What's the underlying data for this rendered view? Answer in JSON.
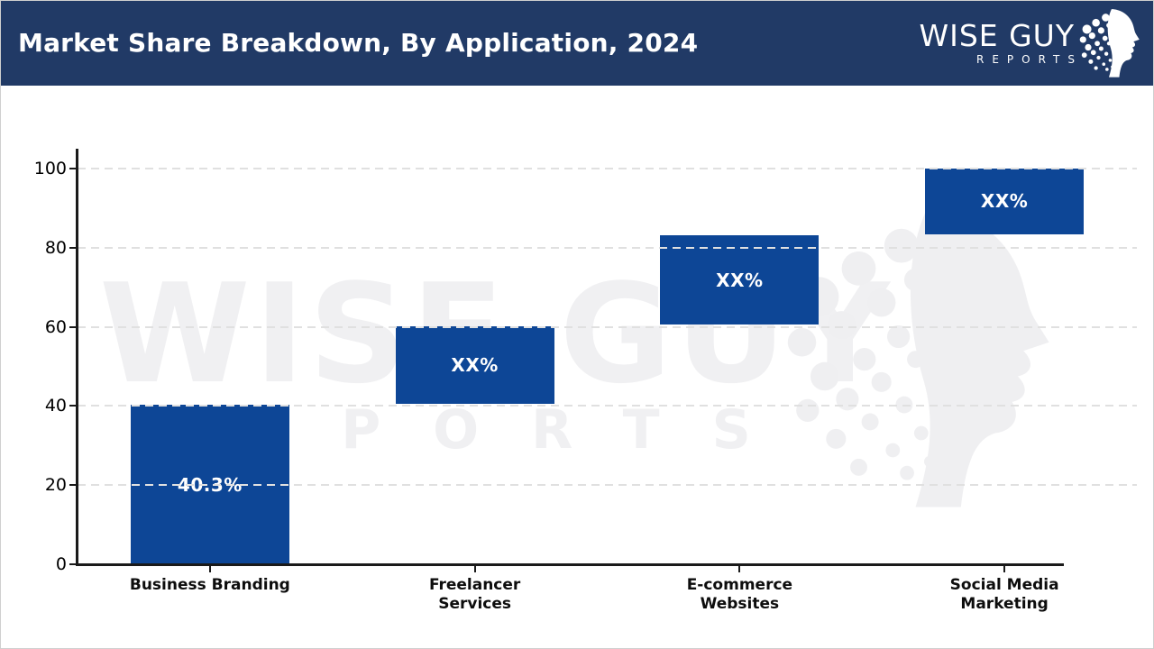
{
  "page": {
    "background": "#ffffff",
    "border_color": "#cfcfcf"
  },
  "header": {
    "background": "#213a66",
    "title": "Market Share Breakdown, By Application, 2024",
    "logo": {
      "name": "WISE GUY",
      "sub": "REPORTS",
      "icon": "dotted-face-profile-icon"
    }
  },
  "watermark": {
    "line1": "WISE GUY",
    "line2": "REPORTS",
    "icon": "dotted-face-profile-icon",
    "color": "#f0f0f2"
  },
  "chart_data": {
    "type": "bar",
    "variant": "waterfall",
    "title": "Market Share Breakdown, By Application, 2024",
    "xlabel": "",
    "ylabel": "",
    "ylim": [
      0,
      100
    ],
    "yticks": [
      0,
      20,
      40,
      60,
      80,
      100
    ],
    "grid": "horizontal-dashed",
    "grid_color": "#e0e0e0",
    "axis_color": "#1a1a1a",
    "bar_color": "#0d4696",
    "bar_label_color": "#ffffff",
    "categories": [
      "Business Branding",
      "Freelancer Services",
      "E-commerce Websites",
      "Social Media Marketing"
    ],
    "category_lines": [
      [
        "Business Branding"
      ],
      [
        "Freelancer",
        "Services"
      ],
      [
        "E-commerce",
        "Websites"
      ],
      [
        "Social Media",
        "Marketing"
      ]
    ],
    "series": [
      {
        "name": "Market Share",
        "segments": [
          {
            "category": "Business Branding",
            "start": 0,
            "end": 40.3,
            "label": "40.3%"
          },
          {
            "category": "Freelancer Services",
            "start": 40.5,
            "end": 60.1,
            "label": "XX%"
          },
          {
            "category": "E-commerce Websites",
            "start": 60.6,
            "end": 83.1,
            "label": "XX%"
          },
          {
            "category": "Social Media Marketing",
            "start": 83.4,
            "end": 100,
            "label": "XX%"
          }
        ]
      }
    ]
  }
}
